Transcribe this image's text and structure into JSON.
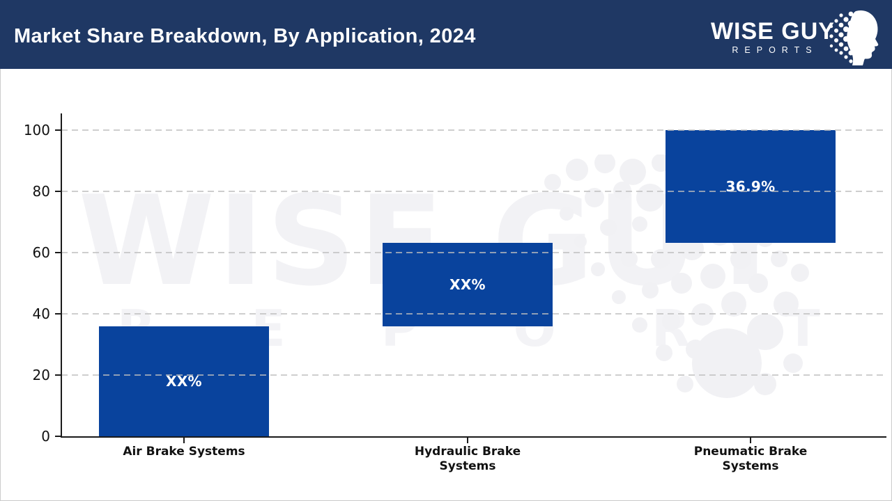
{
  "header": {
    "title": "Market Share Breakdown, By Application, 2024",
    "bg_color": "#1f3864",
    "logo": {
      "brand": "WISE GUY",
      "sub": "REPORTS"
    }
  },
  "watermark": {
    "brand": "WISE GUY",
    "sub": "R E P O R T S"
  },
  "chart_data": {
    "type": "bar",
    "subtype": "waterfall",
    "title": "Market Share Breakdown, By Application, 2024",
    "categories": [
      "Air Brake Systems",
      "Hydraulic Brake Systems",
      "Pneumatic Brake Systems"
    ],
    "segments": [
      {
        "category": "Air Brake Systems",
        "start": 0,
        "end": 36.0,
        "value": 36.0,
        "value_label": "XX%"
      },
      {
        "category": "Hydraulic Brake Systems",
        "start": 36.0,
        "end": 63.1,
        "value": 27.1,
        "value_label": "XX%"
      },
      {
        "category": "Pneumatic Brake Systems",
        "start": 63.1,
        "end": 100.0,
        "value": 36.9,
        "value_label": "36.9%"
      }
    ],
    "ylim": [
      0,
      100
    ],
    "yticks": [
      0,
      20,
      40,
      60,
      80,
      100
    ],
    "grid": "horizontal-dashed",
    "legend": "none",
    "bar_color": "#09439d",
    "xlabel": "",
    "ylabel": ""
  }
}
